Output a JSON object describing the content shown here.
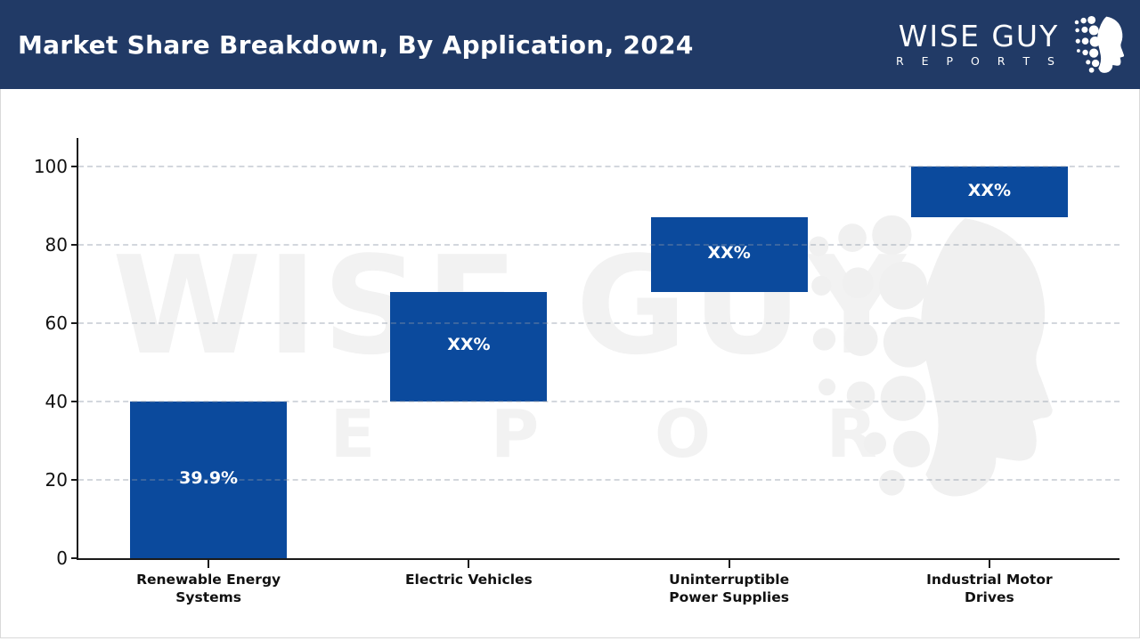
{
  "header": {
    "title": "Market Share Breakdown, By Application, 2024",
    "bg_color": "#213a66",
    "logo": {
      "line1": "WISE GUY",
      "line2": "R E P O R T S",
      "head_icon": "head-of-dots",
      "color": "#ffffff"
    }
  },
  "watermark": {
    "line1": "WISE GUY",
    "line2": "R E P O R T S",
    "head_icon": "head-of-dots",
    "color": "#f2f2f2"
  },
  "chart_data": {
    "type": "bar",
    "subtype": "waterfall-floating-bars",
    "title": "Market Share Breakdown, By Application, 2024",
    "categories": [
      "Renewable Energy Systems",
      "Electric Vehicles",
      "Uninterruptible Power Supplies",
      "Industrial Motor Drives"
    ],
    "category_lines": [
      [
        "Renewable Energy",
        "Systems"
      ],
      [
        "Electric Vehicles"
      ],
      [
        "Uninterruptible",
        "Power Supplies"
      ],
      [
        "Industrial Motor",
        "Drives"
      ]
    ],
    "segments": [
      {
        "start": 0,
        "end": 40,
        "label": "39.9%"
      },
      {
        "start": 40,
        "end": 68,
        "label": "XX%"
      },
      {
        "start": 68,
        "end": 87,
        "label": "XX%"
      },
      {
        "start": 87,
        "end": 100,
        "label": "XX%"
      }
    ],
    "ylim": [
      0,
      107
    ],
    "yticks": [
      0,
      20,
      40,
      60,
      80,
      100
    ],
    "grid": {
      "axis": "y",
      "style": "dashed",
      "above_bars": true
    },
    "bar_color": "#0b4a9d",
    "bar_label_color": "#ffffff",
    "axis_color": "#1a1a1a",
    "tick_label_color": "#111111",
    "legend": "none",
    "xlabel": "",
    "ylabel": ""
  }
}
